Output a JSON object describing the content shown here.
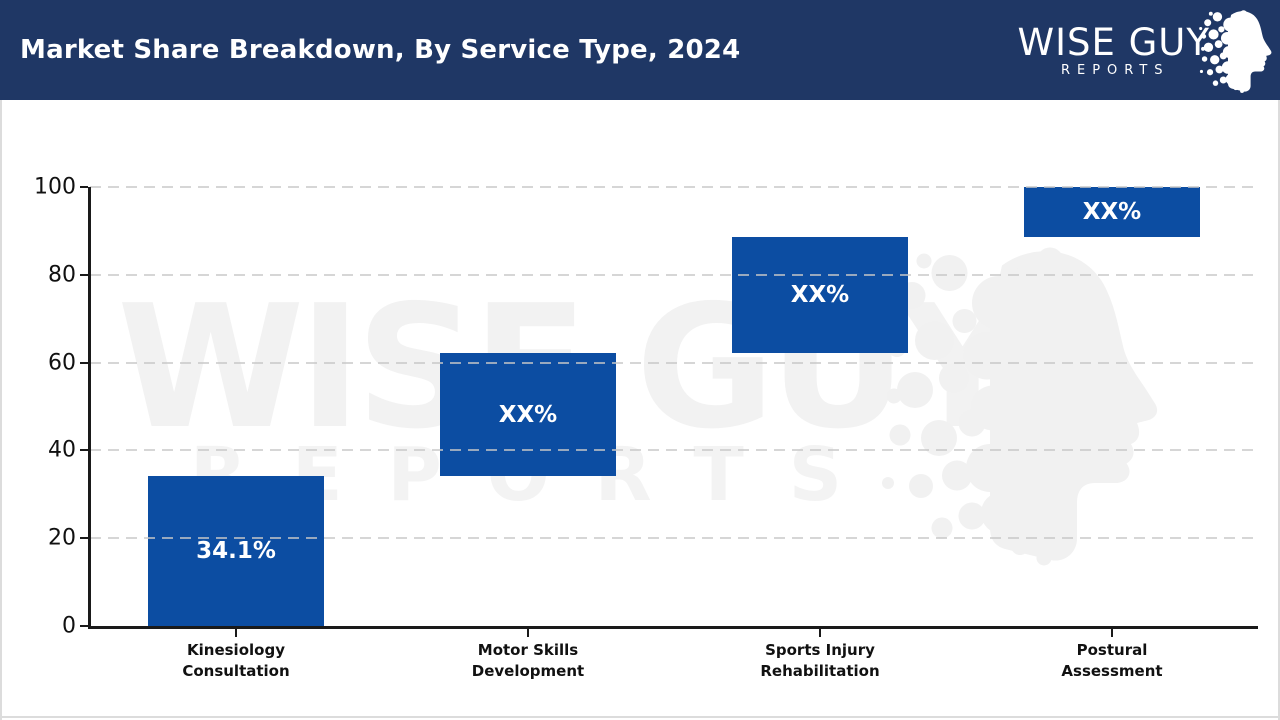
{
  "header": {
    "title": "Market Share Breakdown, By Service Type, 2024",
    "logo": {
      "name": "WISE GUY",
      "sub": "REPORTS"
    }
  },
  "watermark": {
    "line1": "WISE GUY",
    "line2": "REPORTS"
  },
  "chart_data": {
    "type": "bar",
    "subtype": "waterfall-floating-segments",
    "title": "Market Share Breakdown, By Service Type, 2024",
    "categories": [
      [
        "Kinesiology",
        "Consultation"
      ],
      [
        "Motor Skills",
        "Development"
      ],
      [
        "Sports Injury",
        "Rehabilitation"
      ],
      [
        "Postural",
        "Assessment"
      ]
    ],
    "segments": [
      {
        "category": "Kinesiology Consultation",
        "start": 0,
        "end": 34.1,
        "label": "34.1%"
      },
      {
        "category": "Motor Skills Development",
        "start": 34.1,
        "end": 62.2,
        "label": "XX%"
      },
      {
        "category": "Sports Injury Rehabilitation",
        "start": 62.2,
        "end": 88.5,
        "label": "XX%"
      },
      {
        "category": "Postural Assessment",
        "start": 88.5,
        "end": 100,
        "label": "XX%"
      }
    ],
    "xlabel": "",
    "ylabel": "",
    "ylim": [
      0,
      100
    ],
    "yticks": [
      0,
      20,
      40,
      60,
      80,
      100
    ],
    "grid": "horizontal-dashed",
    "legend": "none",
    "bar_width_frac": 0.6,
    "bar_color": "#0c4da2",
    "bar_label_color": "#ffffff"
  },
  "colors": {
    "header_bg": "#1f3765",
    "bar": "#0c4da2",
    "watermark": "#f2f2f2",
    "grid": "#dedede",
    "axis": "#1a1a1a"
  }
}
